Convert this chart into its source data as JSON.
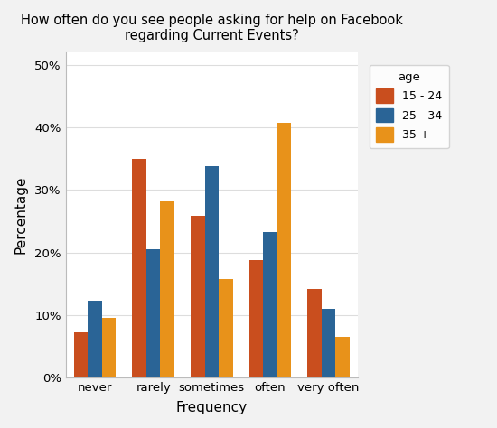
{
  "title": "How often do you see people asking for help on Facebook\nregarding Current Events?",
  "xlabel": "Frequency",
  "ylabel": "Percentage",
  "categories": [
    "never",
    "rarely",
    "sometimes",
    "often",
    "very often"
  ],
  "groups": [
    "15 - 24",
    "25 - 34",
    "35 +"
  ],
  "values": {
    "15 - 24": [
      7.2,
      35.0,
      25.8,
      18.8,
      14.2
    ],
    "25 - 34": [
      12.3,
      20.5,
      33.8,
      23.3,
      10.9
    ],
    "35 +": [
      9.5,
      28.2,
      15.8,
      40.7,
      6.5
    ]
  },
  "colors": {
    "15 - 24": "#C94E1E",
    "25 - 34": "#2A6496",
    "35 +": "#E8921A"
  },
  "ylim": [
    0,
    52
  ],
  "yticks": [
    0,
    10,
    20,
    30,
    40,
    50
  ],
  "ytick_labels": [
    "0%",
    "10%",
    "20%",
    "30%",
    "40%",
    "50%"
  ],
  "legend_title": "age",
  "background_color": "#F2F2F2",
  "plot_bg_color": "#FFFFFF",
  "grid_color": "#DDDDDD",
  "bar_width": 0.24
}
